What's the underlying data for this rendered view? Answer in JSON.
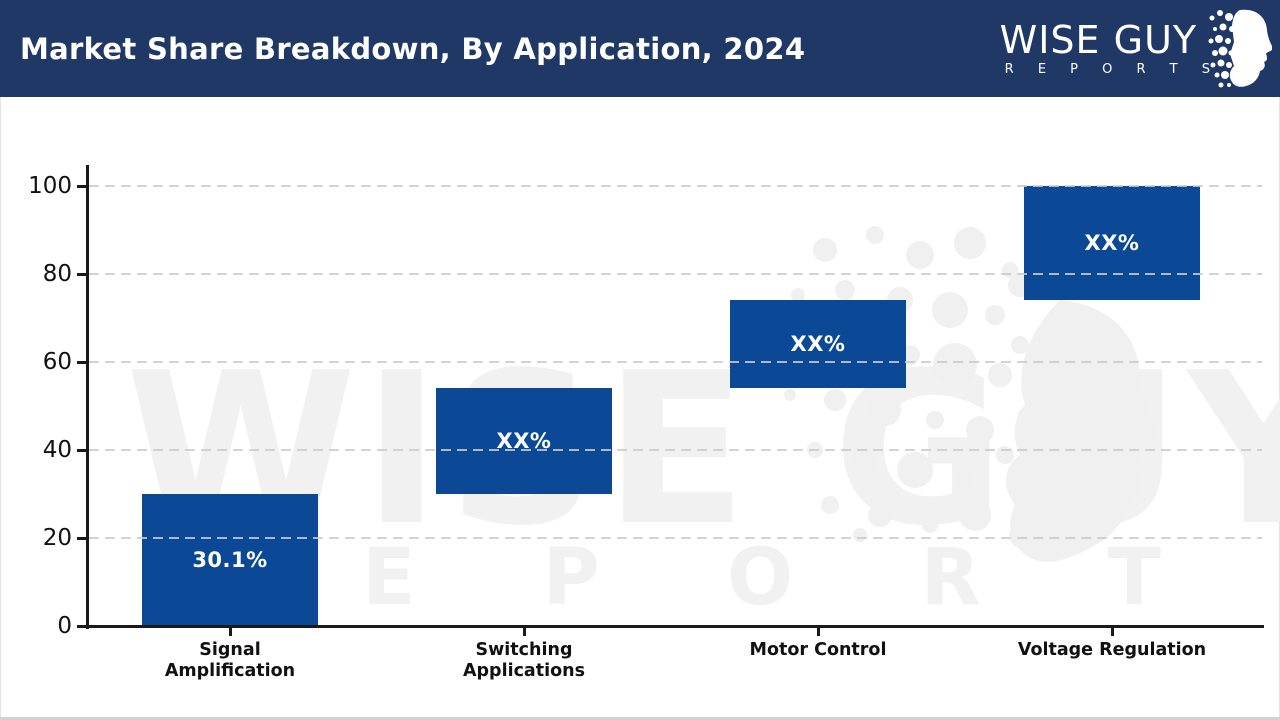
{
  "header": {
    "bg_color": "#1F3865",
    "title": "Market Share Breakdown, By Application, 2024",
    "logo": {
      "name": "WISE GUY",
      "tagline": "R E P O R T S"
    }
  },
  "watermark": {
    "line1": "WISE GUY",
    "line2": "R E P O R T S"
  },
  "chart_data": {
    "type": "bar",
    "subtype": "waterfall",
    "title": "Market Share Breakdown, By Application, 2024",
    "categories": [
      "Signal Amplification",
      "Switching Applications",
      "Motor Control",
      "Voltage Regulation"
    ],
    "category_label_lines": [
      [
        "Signal",
        "Amplification"
      ],
      [
        "Switching",
        "Applications"
      ],
      [
        "Motor Control",
        ""
      ],
      [
        "Voltage Regulation",
        ""
      ]
    ],
    "segments": [
      {
        "category": "Signal Amplification",
        "start": 0,
        "end": 30.1,
        "label": "30.1%"
      },
      {
        "category": "Switching Applications",
        "start": 30.1,
        "end": 54.1,
        "label": "XX%"
      },
      {
        "category": "Motor Control",
        "start": 54.1,
        "end": 74.1,
        "label": "XX%"
      },
      {
        "category": "Voltage Regulation",
        "start": 74.1,
        "end": 100,
        "label": "XX%"
      }
    ],
    "xlabel": "",
    "ylabel": "",
    "ylim": [
      0,
      105
    ],
    "yticks": [
      0,
      20,
      40,
      60,
      80,
      100
    ],
    "grid": true,
    "gridline_style": "dashed",
    "legend": "none",
    "bar_color": "#0B4996",
    "bar_label_color": "#FFFFFF",
    "gridline_color": "#CBCBCB",
    "axis_color": "#1A1A1A",
    "tick_label_color": "#111111",
    "header_color": "#1F3865",
    "watermark_color": "#F1F1F2"
  }
}
